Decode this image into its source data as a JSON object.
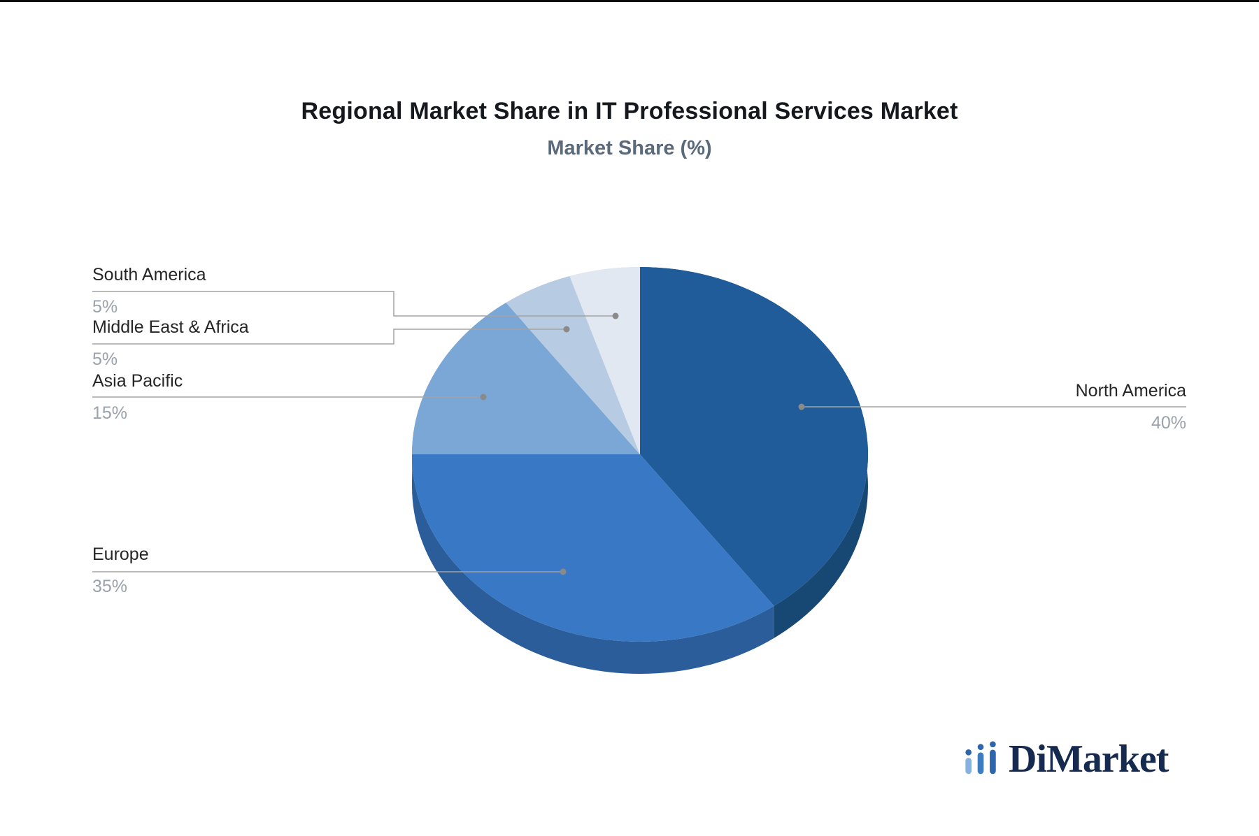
{
  "header": {
    "title": "Regional Market Share in IT Professional Services Market",
    "subtitle": "Market Share (%)"
  },
  "chart_data": {
    "type": "pie",
    "style": "3d-pie",
    "title": "Regional Market Share in IT Professional Services Market",
    "subtitle": "Market Share (%)",
    "unit": "%",
    "start_angle_deg": 0,
    "direction": "clockwise",
    "legend_position": "none",
    "labels": "leader-lines",
    "slices": [
      {
        "label": "North America",
        "value": 40,
        "display": "40%",
        "color": "#1f5c99",
        "side_color": "#164873"
      },
      {
        "label": "Europe",
        "value": 35,
        "display": "35%",
        "color": "#3878c5",
        "side_color": "#2a5d99"
      },
      {
        "label": "Asia Pacific",
        "value": 15,
        "display": "15%",
        "color": "#7ba7d7",
        "side_color": "#5f86b0"
      },
      {
        "label": "Middle East & Africa",
        "value": 5,
        "display": "5%",
        "color": "#b7cbe2",
        "side_color": "#93a8bf"
      },
      {
        "label": "South America",
        "value": 5,
        "display": "5%",
        "color": "#e2e8f1",
        "side_color": "#bcc6d3"
      }
    ],
    "leader_line_color": "#a3a3a3",
    "leader_dot_color": "#8a8a8a"
  },
  "branding": {
    "logo_text": "DiMarket",
    "logo_icon": "bar-chart-icon",
    "logo_text_color": "#152a4e",
    "logo_icon_color": "#3c7dc2"
  }
}
